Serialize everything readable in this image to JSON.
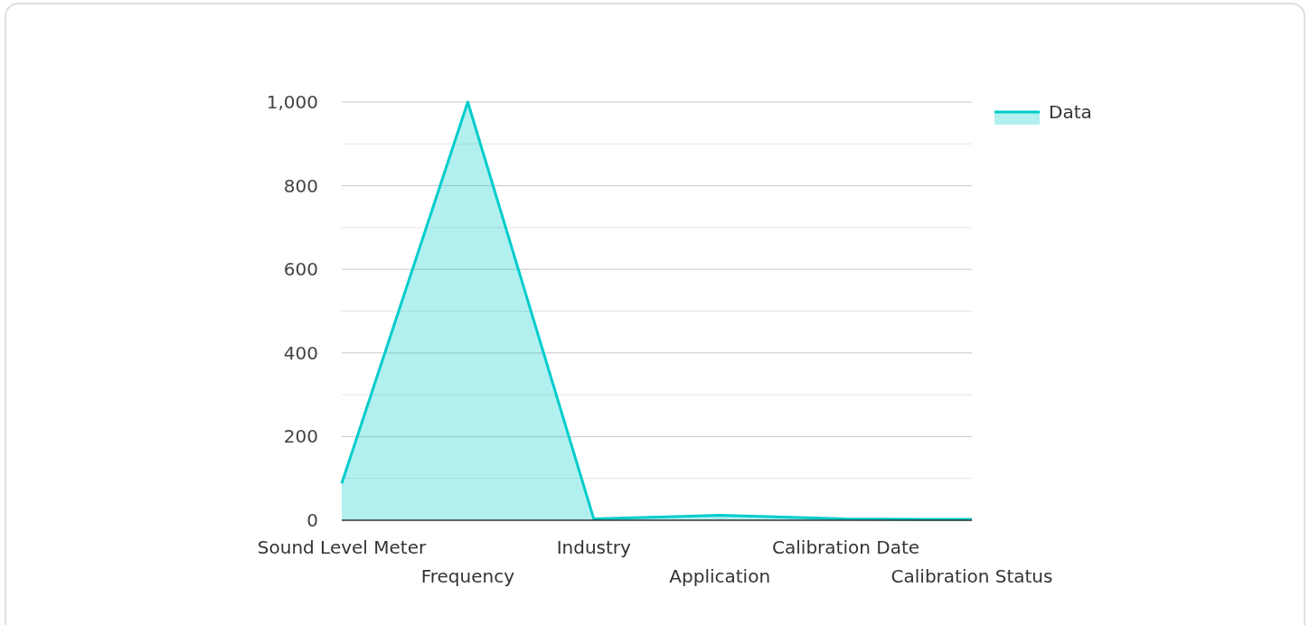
{
  "chart_data": {
    "type": "area",
    "categories": [
      "Sound Level Meter",
      "Frequency",
      "Industry",
      "Application",
      "Calibration Date",
      "Calibration Status"
    ],
    "series": [
      {
        "name": "Data",
        "color": "#00cccc",
        "values": [
          88,
          1000,
          3,
          12,
          3,
          2
        ]
      }
    ],
    "ylim": [
      0,
      1000
    ],
    "yticks": [
      0,
      {
        "value": 100,
        "label": null
      },
      200,
      {
        "value": 300,
        "label": null
      },
      400,
      {
        "value": 500,
        "label": null
      },
      600,
      {
        "value": 700,
        "label": null
      },
      800,
      {
        "value": 900,
        "label": null
      },
      {
        "value": 1000,
        "label": "1,000"
      }
    ],
    "grid": "y",
    "legend": "top right"
  }
}
